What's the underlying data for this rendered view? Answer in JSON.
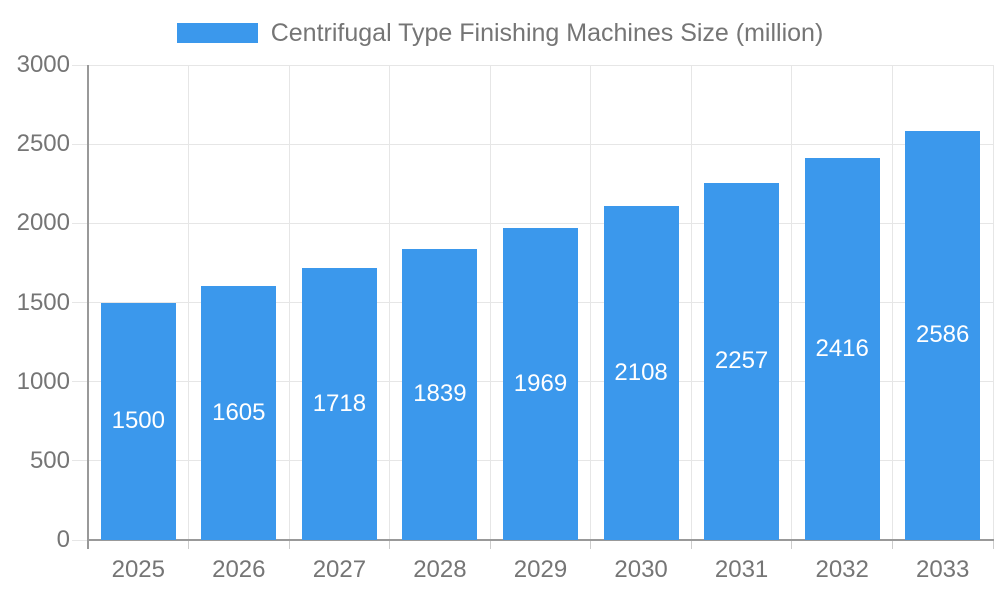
{
  "chart_data": {
    "type": "bar",
    "title": "Centrifugal Type Finishing Machines Size (million)",
    "categories": [
      "2025",
      "2026",
      "2027",
      "2028",
      "2029",
      "2030",
      "2031",
      "2032",
      "2033"
    ],
    "values": [
      1500,
      1605,
      1718,
      1839,
      1969,
      2108,
      2257,
      2416,
      2586
    ],
    "xlabel": "",
    "ylabel": "",
    "ylim": [
      0,
      3000
    ],
    "y_ticks": [
      0,
      500,
      1000,
      1500,
      2000,
      2500,
      3000
    ],
    "grid": true,
    "legend_position": "top",
    "colors": {
      "bar": "#3B98EC",
      "value_label": "#FFFFFF",
      "axis_text": "#757575",
      "axis_line": "#999999",
      "gridline": "#E6E6E6",
      "tick_mark": "#CCCCCC",
      "background": "#FFFFFF"
    }
  }
}
